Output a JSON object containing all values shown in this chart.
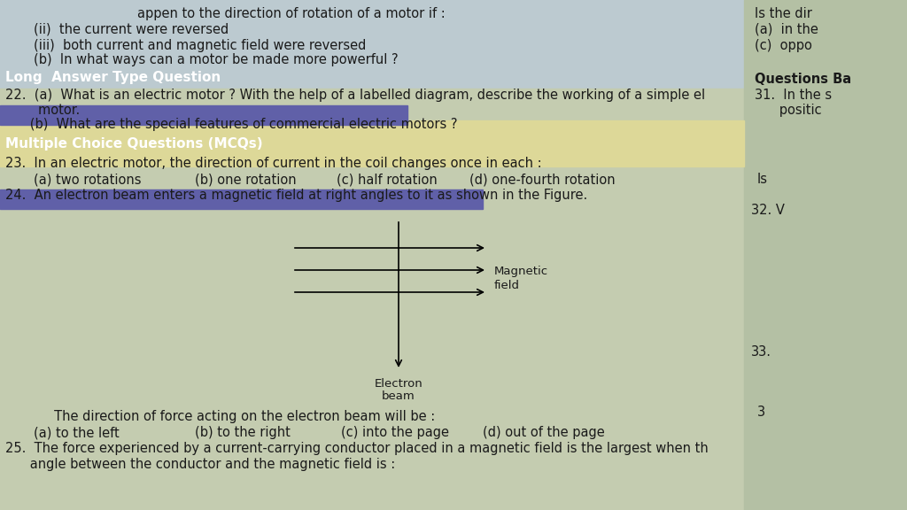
{
  "page_bg": "#c8d0b8",
  "bg_top": "#c0cccc",
  "bg_mid_green": "#c4ccb0",
  "bg_right": "#b8c4a8",
  "purple_bar": "#6060a8",
  "yellow_bar": "#e0d898",
  "text_dark": "#1a1a1a",
  "white": "#ffffff",
  "line_top1": "appen to the direction of rotation of a motor if :",
  "line_ii": "(ii)  the current were reversed",
  "line_iii": "(iii)  both current and magnetic field were reversed",
  "line_b": "(b)  In what ways can a motor be made more powerful ?",
  "right_col1": "Is the dir",
  "right_col2": "(a)  in the",
  "right_col3": "(c)  oppo",
  "right_col4": "Questions Ba",
  "right_col5": "31.  In the s",
  "right_col6": "      positic",
  "section_long": "Long  Answer Type Question",
  "q22_line1": "22.  (a)  What is an electric motor ? With the help of a labelled diagram, describe the working of a simple el",
  "q22_line2": "        motor.",
  "q22_line3": "      (b)  What are the special features of commercial electric motors ?",
  "section_mcq": "Multiple Choice Questions (MCQs)",
  "q23_line": "23.  In an electric motor, the direction of current in the coil changes once in each :",
  "q23a": "(a) two rotations",
  "q23b": "(b) one rotation",
  "q23c": "(c) half rotation",
  "q23d": "(d) one-fourth rotation",
  "q24_line": "24.  An electron beam enters a magnetic field at right angles to it as shown in the Figure.",
  "force_line": "     The direction of force acting on the electron beam will be :",
  "q24a": "(a) to the left",
  "q24b": "(b) to the right",
  "q24c": "(c) into the page",
  "q24d": "(d) out of the page",
  "q25_line1": "25.  The force experienced by a current-carrying conductor placed in a magnetic field is the largest when th",
  "q25_line2": "      angle between the conductor and the magnetic field is :",
  "right_is": "Is",
  "right_32": "32. V",
  "right_33": "33.",
  "right_34": "3"
}
